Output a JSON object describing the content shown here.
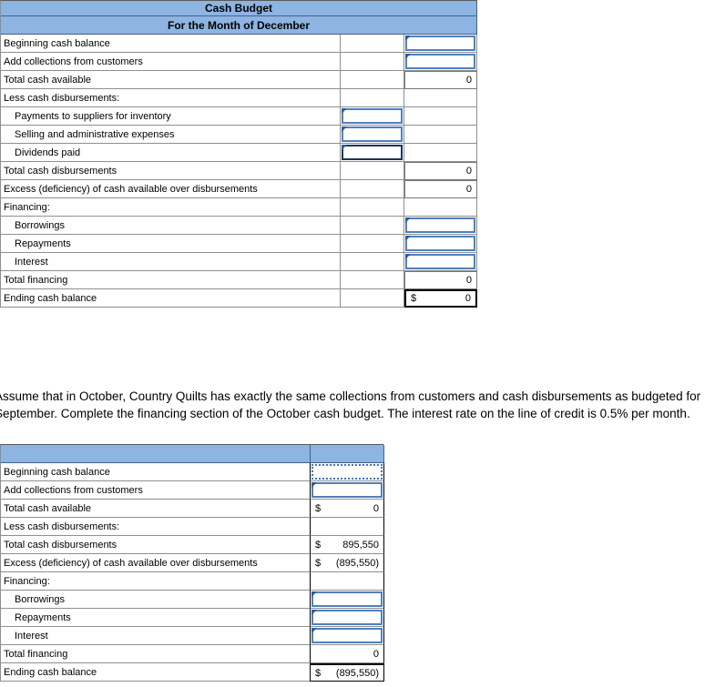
{
  "instruction": {
    "line1": "Assume that in October, Country Quilts has exactly the same collections from customers and cash disbursements as budgeted for",
    "line2": "September. Complete the financing section of the October cash budget. The interest rate on the line of credit is 0.5% per month."
  },
  "colors": {
    "header_blue": "#8DB4E2",
    "input_border_blue": "#4F81BD",
    "active_input_border": "#17375E",
    "selection_border": "#4472C4",
    "grid_line": "#8f8f8f"
  },
  "december_budget": {
    "title": "Cash Budget",
    "subtitle": "For the Month of December",
    "rows": [
      {
        "label": "Beginning cash balance",
        "indent": 0,
        "mid": {
          "kind": "empty"
        },
        "right": {
          "kind": "input"
        }
      },
      {
        "label": "Add collections from customers",
        "indent": 0,
        "mid": {
          "kind": "empty"
        },
        "right": {
          "kind": "input"
        }
      },
      {
        "label": "Total cash available",
        "indent": 0,
        "mid": {
          "kind": "empty"
        },
        "right": {
          "kind": "value",
          "text": "0"
        }
      },
      {
        "label": "Less cash disbursements:",
        "indent": 0,
        "mid": {
          "kind": "empty"
        },
        "right": {
          "kind": "empty"
        }
      },
      {
        "label": "Payments to suppliers for inventory",
        "indent": 1,
        "mid": {
          "kind": "input"
        },
        "right": {
          "kind": "empty"
        }
      },
      {
        "label": "Selling and administrative expenses",
        "indent": 1,
        "mid": {
          "kind": "input"
        },
        "right": {
          "kind": "empty"
        }
      },
      {
        "label": "Dividends paid",
        "indent": 1,
        "mid": {
          "kind": "input-active"
        },
        "right": {
          "kind": "empty"
        }
      },
      {
        "label": "Total cash disbursements",
        "indent": 0,
        "mid": {
          "kind": "empty"
        },
        "right": {
          "kind": "value",
          "text": "0"
        }
      },
      {
        "label": "Excess (deficiency) of cash available over disbursements",
        "indent": 0,
        "mid": {
          "kind": "empty"
        },
        "right": {
          "kind": "value",
          "text": "0"
        }
      },
      {
        "label": "Financing:",
        "indent": 0,
        "mid": {
          "kind": "empty"
        },
        "right": {
          "kind": "empty"
        }
      },
      {
        "label": "Borrowings",
        "indent": 1,
        "mid": {
          "kind": "empty"
        },
        "right": {
          "kind": "input"
        }
      },
      {
        "label": "Repayments",
        "indent": 1,
        "mid": {
          "kind": "empty"
        },
        "right": {
          "kind": "input"
        }
      },
      {
        "label": "Interest",
        "indent": 1,
        "mid": {
          "kind": "empty"
        },
        "right": {
          "kind": "input"
        }
      },
      {
        "label": "Total financing",
        "indent": 0,
        "mid": {
          "kind": "empty"
        },
        "right": {
          "kind": "value",
          "text": "0"
        }
      },
      {
        "label": "Ending cash balance",
        "indent": 0,
        "mid": {
          "kind": "empty"
        },
        "right": {
          "kind": "total",
          "dollar": "$",
          "text": "0"
        }
      }
    ]
  },
  "october_budget": {
    "rows": [
      {
        "label": "Beginning cash balance",
        "indent": 0,
        "value": {
          "kind": "input-selected"
        }
      },
      {
        "label": "Add collections from customers",
        "indent": 0,
        "value": {
          "kind": "input"
        }
      },
      {
        "label": "Total cash available",
        "indent": 0,
        "value": {
          "kind": "value",
          "dollar": "$",
          "text": "0"
        }
      },
      {
        "label": "Less cash disbursements:",
        "indent": 0,
        "value": {
          "kind": "empty"
        }
      },
      {
        "label": "Total cash disbursements",
        "indent": 0,
        "value": {
          "kind": "value",
          "dollar": "$",
          "text": "895,550"
        }
      },
      {
        "label": "Excess (deficiency) of cash available over disbursements",
        "indent": 0,
        "value": {
          "kind": "value",
          "dollar": "$",
          "text": "(895,550)"
        }
      },
      {
        "label": "Financing:",
        "indent": 0,
        "value": {
          "kind": "empty"
        }
      },
      {
        "label": "Borrowings",
        "indent": 1,
        "value": {
          "kind": "input"
        }
      },
      {
        "label": "Repayments",
        "indent": 1,
        "value": {
          "kind": "input"
        }
      },
      {
        "label": "Interest",
        "indent": 1,
        "value": {
          "kind": "input"
        }
      },
      {
        "label": "Total financing",
        "indent": 0,
        "value": {
          "kind": "value",
          "text": "0"
        }
      },
      {
        "label": "Ending cash balance",
        "indent": 0,
        "value": {
          "kind": "total",
          "dollar": "$",
          "text": "(895,550)"
        }
      }
    ]
  }
}
